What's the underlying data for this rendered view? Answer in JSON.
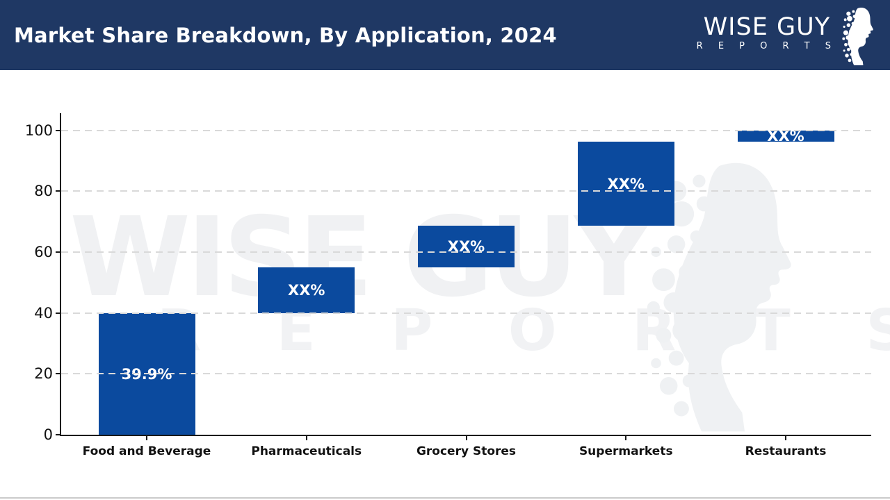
{
  "header": {
    "title": "Market Share Breakdown, By Application, 2024",
    "bg_color": "#1F3864",
    "logo": {
      "line1": "WISE GUY",
      "line2": "R E P O R T S"
    }
  },
  "watermark": {
    "line1": "WISE GUY",
    "line2": "R E P O R T S"
  },
  "chart_data": {
    "type": "bar",
    "subtype": "waterfall",
    "title": "Market Share Breakdown, By Application, 2024",
    "xlabel": "",
    "ylabel": "",
    "categories": [
      "Food and Beverage",
      "Pharmaceuticals",
      "Grocery Stores",
      "Supermarkets",
      "Restaurants"
    ],
    "segments": [
      {
        "category": "Food and Beverage",
        "start": 0,
        "end": 39.9,
        "label": "39.9%"
      },
      {
        "category": "Pharmaceuticals",
        "start": 39.9,
        "end": 55.0,
        "label": "XX%"
      },
      {
        "category": "Grocery Stores",
        "start": 55.0,
        "end": 68.6,
        "label": "XX%"
      },
      {
        "category": "Supermarkets",
        "start": 68.6,
        "end": 96.2,
        "label": "XX%"
      },
      {
        "category": "Restaurants",
        "start": 96.2,
        "end": 100.0,
        "label": "XX%"
      }
    ],
    "y_ticks": [
      0,
      20,
      40,
      60,
      80,
      100
    ],
    "gridline_values": [
      20,
      40,
      60,
      80,
      100
    ],
    "ylim": [
      0,
      105
    ],
    "grid": true,
    "legend": "none",
    "bar_color": "#0B4A9E",
    "bar_label_color": "#FFFFFF",
    "axis_color": "#1a1a1a",
    "grid_color": "#d9d9d9"
  }
}
